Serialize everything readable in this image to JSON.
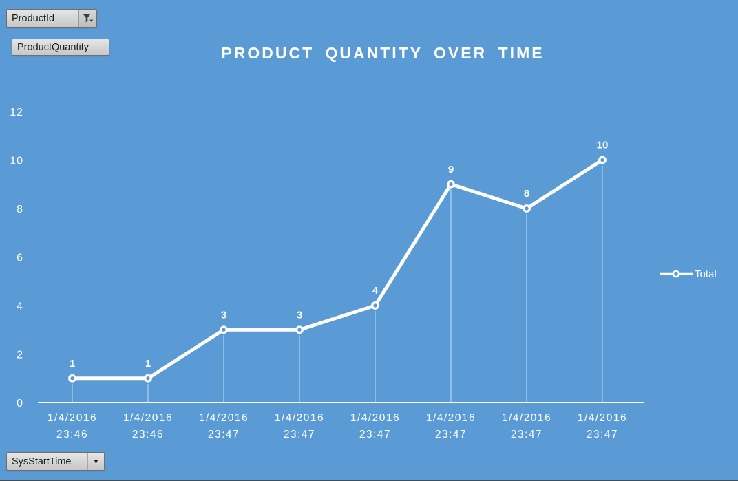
{
  "field_buttons": {
    "product_id": "ProductId",
    "product_quantity": "ProductQuantity",
    "sys_start_time": "SysStartTime"
  },
  "icons": {
    "dropdown_arrow": "▼"
  },
  "chart_data": {
    "type": "line",
    "title": "PRODUCT QUANTITY OVER TIME",
    "categories": [
      "1/4/2016 23:46",
      "1/4/2016 23:46",
      "1/4/2016 23:47",
      "1/4/2016 23:47",
      "1/4/2016 23:47",
      "1/4/2016 23:47",
      "1/4/2016 23:47",
      "1/4/2016 23:47"
    ],
    "values": [
      1,
      1,
      3,
      3,
      4,
      9,
      8,
      10
    ],
    "xlabel": "",
    "ylabel": "",
    "ylim": [
      0,
      12
    ],
    "yticks": [
      0,
      2,
      4,
      6,
      8,
      10,
      12
    ],
    "grid": false,
    "data_labels": true,
    "drop_lines": true,
    "marker": "circle",
    "legend": {
      "position": "right",
      "entries": [
        "Total"
      ]
    }
  },
  "colors": {
    "background": "#5b9bd5",
    "line": "#ffffff",
    "text": "#ffffff"
  }
}
